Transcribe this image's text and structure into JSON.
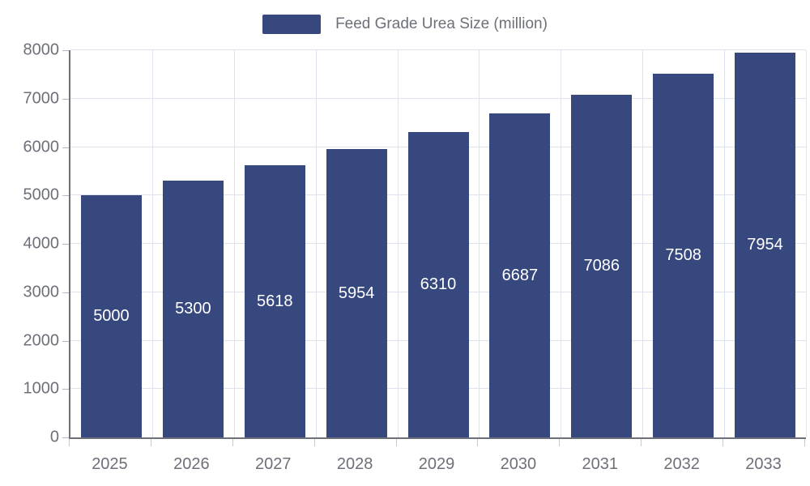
{
  "legend": {
    "label": "Feed Grade Urea Size (million)"
  },
  "colors": {
    "bar": "#36487e",
    "axis_text": "#6e7079",
    "grid_line": "#e0e3ee",
    "axis_line": "#6e7079",
    "bar_label": "#ffffff",
    "background": "#ffffff"
  },
  "chart_data": {
    "type": "bar",
    "title": "",
    "xlabel": "",
    "ylabel": "",
    "categories": [
      "2025",
      "2026",
      "2027",
      "2028",
      "2029",
      "2030",
      "2031",
      "2032",
      "2033"
    ],
    "series": [
      {
        "name": "Feed Grade Urea Size (million)",
        "values": [
          5000,
          5300,
          5618,
          5954,
          6310,
          6687,
          7086,
          7508,
          7954
        ],
        "color": "#36487e"
      }
    ],
    "ylim": [
      0,
      8000
    ],
    "yticks": [
      0,
      1000,
      2000,
      3000,
      4000,
      5000,
      6000,
      7000,
      8000
    ],
    "grid": true,
    "legend_position": "top-center",
    "bar_label_position": "inside-center",
    "bar_label_color": "#ffffff"
  }
}
